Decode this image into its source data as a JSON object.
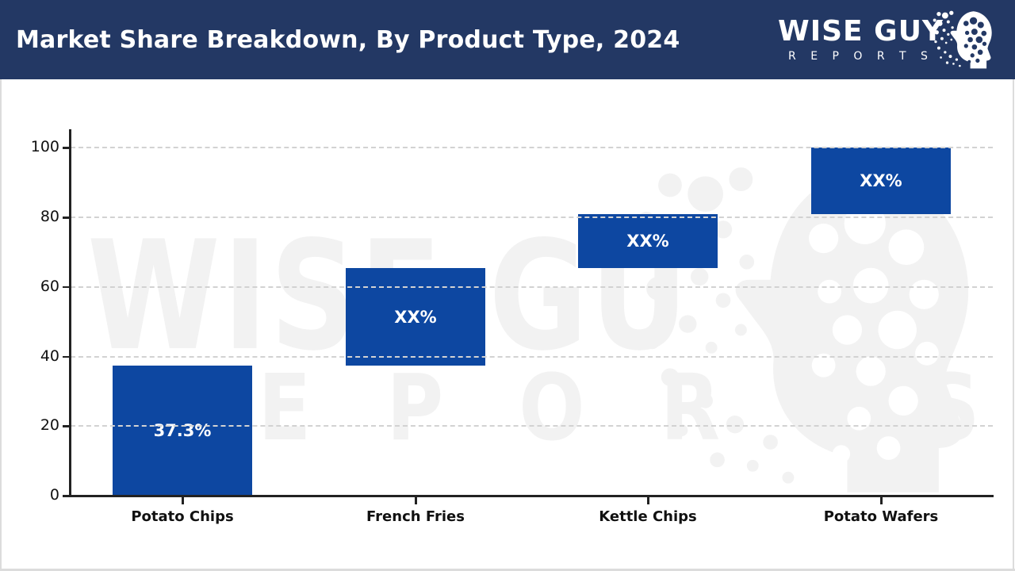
{
  "header": {
    "title": "Market Share Breakdown, By Product Type, 2024",
    "logo": {
      "wordmark": "WISE GUY",
      "subtext": "R E P O R T S"
    }
  },
  "watermark": {
    "wordmark": "WISE GU",
    "subtext": "R E P O R T S"
  },
  "colors": {
    "header_bg": "#233864",
    "bar": "#0d47a1",
    "grid": "#d2d2d2",
    "axis": "#222222",
    "bar_label": "#ffffff",
    "watermark": "#f2f2f2"
  },
  "chart_data": {
    "type": "bar",
    "variant": "waterfall",
    "title": "Market Share Breakdown, By Product Type, 2024",
    "categories": [
      "Potato Chips",
      "French Fries",
      "Kettle Chips",
      "Potato Wafers"
    ],
    "series": [
      {
        "name": "Market share (%)",
        "segments": [
          {
            "category": "Potato Chips",
            "start": 0,
            "end": 37.3,
            "label": "37.3%"
          },
          {
            "category": "French Fries",
            "start": 37.3,
            "end": 65.5,
            "label": "XX%"
          },
          {
            "category": "Kettle Chips",
            "start": 65.5,
            "end": 81.0,
            "label": "XX%"
          },
          {
            "category": "Potato Wafers",
            "start": 81.0,
            "end": 100.0,
            "label": "XX%"
          }
        ]
      }
    ],
    "xlabel": "",
    "ylabel": "",
    "yticks": [
      0,
      20,
      40,
      60,
      80,
      100
    ],
    "ylim": [
      0,
      105
    ],
    "grid": {
      "horizontal": true,
      "style": "dashed",
      "above_bars": true
    },
    "legend": "none"
  }
}
